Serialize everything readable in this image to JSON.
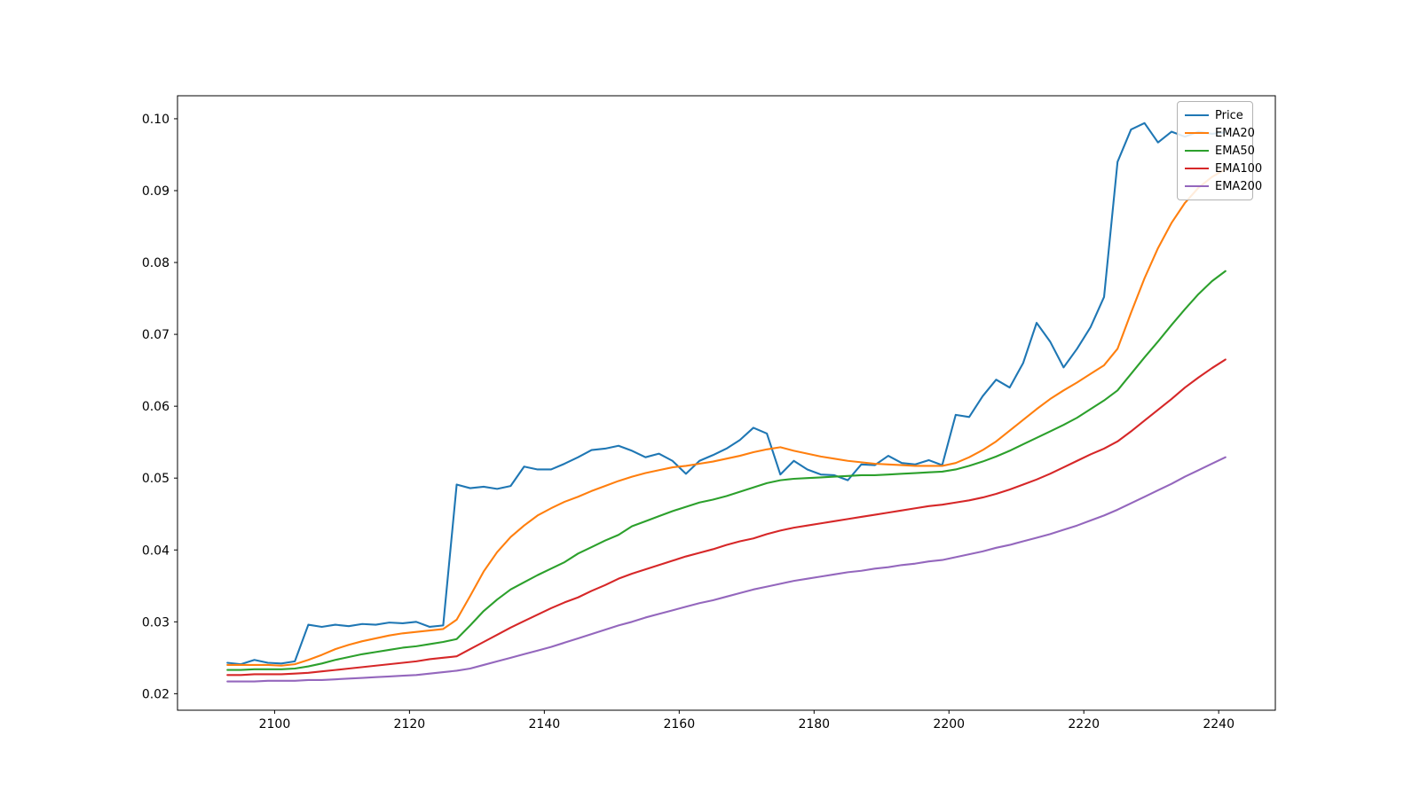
{
  "chart_data": {
    "type": "line",
    "title": "",
    "xlabel": "",
    "ylabel": "",
    "grid": false,
    "legend_position": "upper right",
    "xlim": [
      2085.6,
      2248.4
    ],
    "ylim": [
      0.0177,
      0.1032
    ],
    "x_ticks": [
      2100,
      2120,
      2140,
      2160,
      2180,
      2200,
      2220,
      2240
    ],
    "x_tick_labels": [
      "2100",
      "2120",
      "2140",
      "2160",
      "2180",
      "2200",
      "2220",
      "2240"
    ],
    "y_ticks": [
      0.02,
      0.03,
      0.04,
      0.05,
      0.06,
      0.07,
      0.08,
      0.09,
      0.1
    ],
    "y_tick_labels": [
      "0.02",
      "0.03",
      "0.04",
      "0.05",
      "0.06",
      "0.07",
      "0.08",
      "0.09",
      "0.10"
    ],
    "x": [
      2093,
      2095,
      2097,
      2099,
      2101,
      2103,
      2105,
      2107,
      2109,
      2111,
      2113,
      2115,
      2117,
      2119,
      2121,
      2123,
      2125,
      2127,
      2129,
      2131,
      2133,
      2135,
      2137,
      2139,
      2141,
      2143,
      2145,
      2147,
      2149,
      2151,
      2153,
      2155,
      2157,
      2159,
      2161,
      2163,
      2165,
      2167,
      2169,
      2171,
      2173,
      2175,
      2177,
      2179,
      2181,
      2183,
      2185,
      2187,
      2189,
      2191,
      2193,
      2195,
      2197,
      2199,
      2201,
      2203,
      2205,
      2207,
      2209,
      2211,
      2213,
      2215,
      2217,
      2219,
      2221,
      2223,
      2225,
      2227,
      2229,
      2231,
      2233,
      2235,
      2237,
      2239,
      2241
    ],
    "series": [
      {
        "name": "Price",
        "color": "#1f77b4",
        "values": [
          0.0243,
          0.0241,
          0.0247,
          0.0243,
          0.0242,
          0.0245,
          0.0296,
          0.0293,
          0.0296,
          0.0294,
          0.0297,
          0.0296,
          0.0299,
          0.0298,
          0.03,
          0.0293,
          0.0295,
          0.0491,
          0.0486,
          0.0488,
          0.0485,
          0.0489,
          0.0516,
          0.0512,
          0.0512,
          0.052,
          0.0529,
          0.0539,
          0.0541,
          0.0545,
          0.0538,
          0.0529,
          0.0534,
          0.0524,
          0.0506,
          0.0524,
          0.0532,
          0.0541,
          0.0553,
          0.057,
          0.0562,
          0.0505,
          0.0524,
          0.0512,
          0.0505,
          0.0504,
          0.0497,
          0.0519,
          0.0518,
          0.0531,
          0.0521,
          0.0519,
          0.0525,
          0.0518,
          0.0588,
          0.0585,
          0.0614,
          0.0637,
          0.0626,
          0.066,
          0.0716,
          0.069,
          0.0654,
          0.068,
          0.071,
          0.0752,
          0.094,
          0.0985,
          0.0994,
          0.0967,
          0.0982,
          0.0975,
          0.0982,
          0.0979,
          0.0981
        ]
      },
      {
        "name": "EMA20",
        "color": "#ff7f0e",
        "values": [
          0.024,
          0.024,
          0.024,
          0.024,
          0.0239,
          0.0241,
          0.0247,
          0.0254,
          0.0262,
          0.0268,
          0.0273,
          0.0277,
          0.0281,
          0.0284,
          0.0286,
          0.0288,
          0.029,
          0.0303,
          0.0336,
          0.037,
          0.0397,
          0.0418,
          0.0434,
          0.0448,
          0.0458,
          0.0467,
          0.0474,
          0.0482,
          0.0489,
          0.0496,
          0.0502,
          0.0507,
          0.0511,
          0.0515,
          0.0517,
          0.052,
          0.0523,
          0.0527,
          0.0531,
          0.0536,
          0.054,
          0.0543,
          0.0538,
          0.0534,
          0.053,
          0.0527,
          0.0524,
          0.0522,
          0.052,
          0.0519,
          0.0518,
          0.0517,
          0.0517,
          0.0517,
          0.0521,
          0.0529,
          0.0539,
          0.0551,
          0.0566,
          0.0581,
          0.0596,
          0.061,
          0.0622,
          0.0633,
          0.0645,
          0.0657,
          0.068,
          0.073,
          0.0778,
          0.082,
          0.0855,
          0.0883,
          0.0904,
          0.0919,
          0.093
        ]
      },
      {
        "name": "EMA50",
        "color": "#2ca02c",
        "values": [
          0.0233,
          0.0233,
          0.0234,
          0.0234,
          0.0234,
          0.0235,
          0.0238,
          0.0242,
          0.0247,
          0.0251,
          0.0255,
          0.0258,
          0.0261,
          0.0264,
          0.0266,
          0.0269,
          0.0272,
          0.0276,
          0.0295,
          0.0315,
          0.0331,
          0.0345,
          0.0355,
          0.0365,
          0.0374,
          0.0383,
          0.0395,
          0.0404,
          0.0413,
          0.0421,
          0.0433,
          0.044,
          0.0447,
          0.0454,
          0.046,
          0.0466,
          0.047,
          0.0475,
          0.0481,
          0.0487,
          0.0493,
          0.0497,
          0.0499,
          0.05,
          0.0501,
          0.0502,
          0.0503,
          0.0504,
          0.0504,
          0.0505,
          0.0506,
          0.0507,
          0.0508,
          0.0509,
          0.0512,
          0.0517,
          0.0523,
          0.053,
          0.0538,
          0.0547,
          0.0556,
          0.0565,
          0.0574,
          0.0584,
          0.0596,
          0.0608,
          0.0622,
          0.0645,
          0.0668,
          0.069,
          0.0713,
          0.0735,
          0.0756,
          0.0774,
          0.0788
        ]
      },
      {
        "name": "EMA100",
        "color": "#d62728",
        "values": [
          0.0226,
          0.0226,
          0.0227,
          0.0227,
          0.0227,
          0.0228,
          0.0229,
          0.0231,
          0.0233,
          0.0235,
          0.0237,
          0.0239,
          0.0241,
          0.0243,
          0.0245,
          0.0248,
          0.025,
          0.0252,
          0.0262,
          0.0272,
          0.0282,
          0.0292,
          0.0301,
          0.031,
          0.0319,
          0.0327,
          0.0334,
          0.0343,
          0.0351,
          0.036,
          0.0367,
          0.0373,
          0.0379,
          0.0385,
          0.0391,
          0.0396,
          0.0401,
          0.0407,
          0.0412,
          0.0416,
          0.0422,
          0.0427,
          0.0431,
          0.0434,
          0.0437,
          0.044,
          0.0443,
          0.0446,
          0.0449,
          0.0452,
          0.0455,
          0.0458,
          0.0461,
          0.0463,
          0.0466,
          0.0469,
          0.0473,
          0.0478,
          0.0484,
          0.0491,
          0.0498,
          0.0506,
          0.0515,
          0.0524,
          0.0533,
          0.0541,
          0.0551,
          0.0565,
          0.058,
          0.0595,
          0.061,
          0.0626,
          0.064,
          0.0653,
          0.0665
        ]
      },
      {
        "name": "EMA200",
        "color": "#9467bd",
        "values": [
          0.0217,
          0.0217,
          0.0217,
          0.0218,
          0.0218,
          0.0218,
          0.0219,
          0.0219,
          0.022,
          0.0221,
          0.0222,
          0.0223,
          0.0224,
          0.0225,
          0.0226,
          0.0228,
          0.023,
          0.0232,
          0.0235,
          0.024,
          0.0245,
          0.025,
          0.0255,
          0.026,
          0.0265,
          0.0271,
          0.0277,
          0.0283,
          0.0289,
          0.0295,
          0.03,
          0.0306,
          0.0311,
          0.0316,
          0.0321,
          0.0326,
          0.033,
          0.0335,
          0.034,
          0.0345,
          0.0349,
          0.0353,
          0.0357,
          0.036,
          0.0363,
          0.0366,
          0.0369,
          0.0371,
          0.0374,
          0.0376,
          0.0379,
          0.0381,
          0.0384,
          0.0386,
          0.039,
          0.0394,
          0.0398,
          0.0403,
          0.0407,
          0.0412,
          0.0417,
          0.0422,
          0.0428,
          0.0434,
          0.0441,
          0.0448,
          0.0456,
          0.0465,
          0.0474,
          0.0483,
          0.0492,
          0.0502,
          0.0511,
          0.052,
          0.0529
        ]
      }
    ]
  }
}
